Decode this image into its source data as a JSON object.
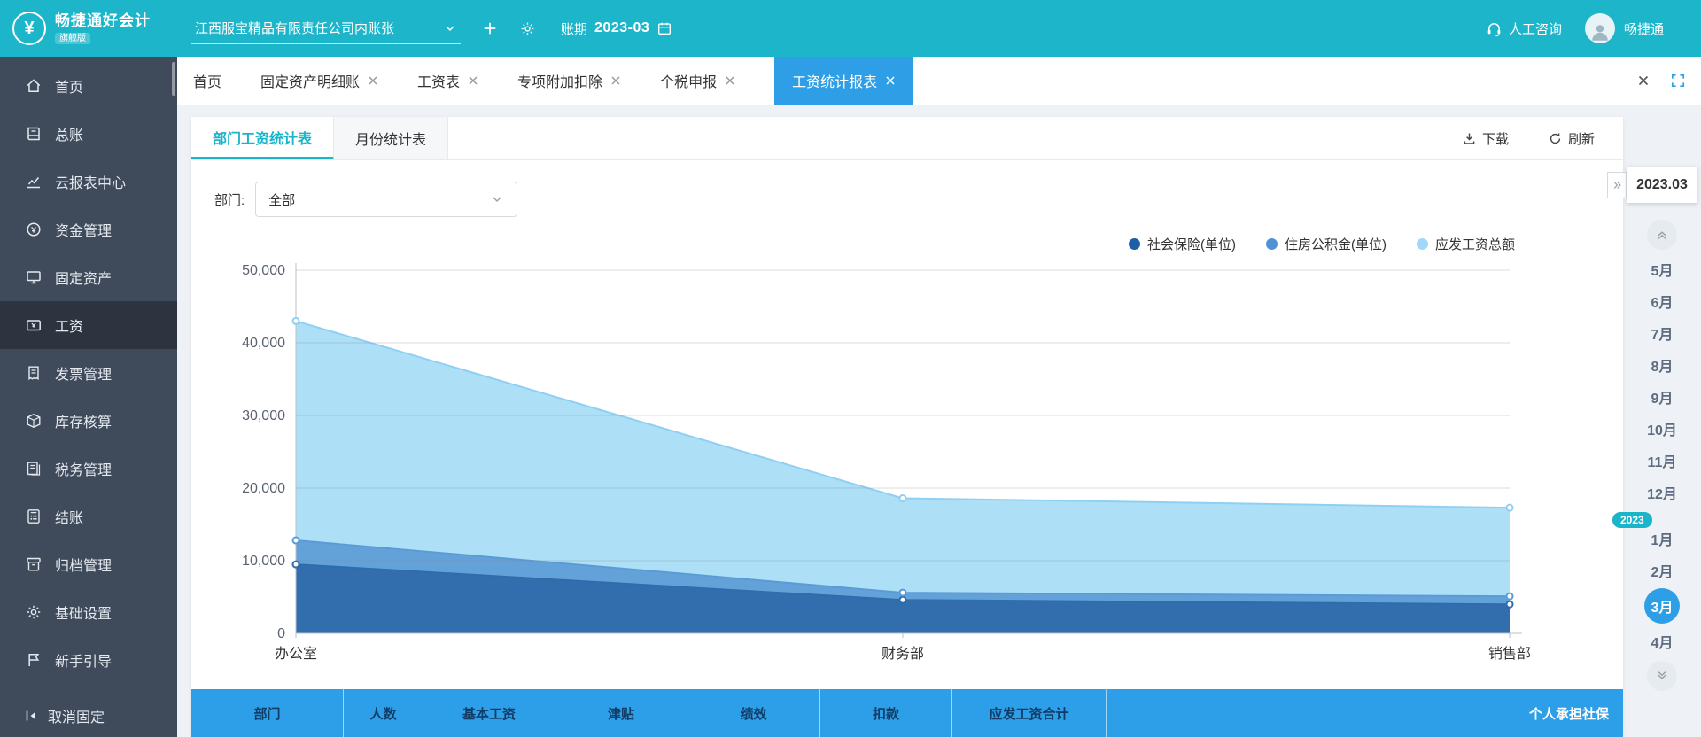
{
  "topbar": {
    "brand": "畅捷通好会计",
    "brand_sub": "旗舰版",
    "company": "江西服宝精品有限责任公司内账张",
    "period_label": "账期",
    "period_value": "2023-03",
    "support": "人工咨询",
    "user": "畅捷通"
  },
  "sidebar": {
    "items": [
      {
        "label": "首页",
        "icon": "home",
        "active": false
      },
      {
        "label": "总账",
        "icon": "ledger",
        "active": false
      },
      {
        "label": "云报表中心",
        "icon": "cloud-report",
        "active": false
      },
      {
        "label": "资金管理",
        "icon": "funds",
        "active": false
      },
      {
        "label": "固定资产",
        "icon": "fixed-assets",
        "active": false
      },
      {
        "label": "工资",
        "icon": "salary",
        "active": true
      },
      {
        "label": "发票管理",
        "icon": "invoice",
        "active": false
      },
      {
        "label": "库存核算",
        "icon": "inventory",
        "active": false
      },
      {
        "label": "税务管理",
        "icon": "tax",
        "active": false
      },
      {
        "label": "结账",
        "icon": "closing",
        "active": false
      },
      {
        "label": "归档管理",
        "icon": "archive",
        "active": false
      },
      {
        "label": "基础设置",
        "icon": "settings",
        "active": false
      },
      {
        "label": "新手引导",
        "icon": "guide",
        "active": false
      }
    ],
    "unpin": "取消固定"
  },
  "tabs": {
    "items": [
      {
        "label": "首页",
        "closable": false,
        "active": false
      },
      {
        "label": "固定资产明细账",
        "closable": true,
        "active": false
      },
      {
        "label": "工资表",
        "closable": true,
        "active": false
      },
      {
        "label": "专项附加扣除",
        "closable": true,
        "active": false
      },
      {
        "label": "个税申报",
        "closable": true,
        "active": false
      },
      {
        "label": "工资统计报表",
        "closable": true,
        "active": true
      }
    ]
  },
  "content": {
    "subtabs": [
      {
        "label": "部门工资统计表",
        "active": true
      },
      {
        "label": "月份统计表",
        "active": false
      }
    ],
    "actions": {
      "download": "下载",
      "refresh": "刷新"
    },
    "filter": {
      "label": "部门:",
      "value": "全部"
    }
  },
  "chart_data": {
    "type": "area",
    "title": "",
    "categories": [
      "办公室",
      "财务部",
      "销售部"
    ],
    "series": [
      {
        "name": "社会保险(单位)",
        "values": [
          9500,
          4600,
          4000
        ],
        "fill": "#2F6CAB",
        "stroke": "#2F6CAB",
        "legend": "#1C5FA6",
        "opacity": 0.95
      },
      {
        "name": "住房公积金(单位)",
        "values": [
          12800,
          5600,
          5100
        ],
        "fill": "#5B9BD5",
        "stroke": "#5B9BD5",
        "legend": "#4F93D5",
        "opacity": 0.9
      },
      {
        "name": "应发工资总额",
        "values": [
          43000,
          18600,
          17300
        ],
        "fill": "#A9DDF7",
        "stroke": "#8FD0F2",
        "legend": "#9FD9F7",
        "opacity": 0.95
      }
    ],
    "ylim": [
      0,
      50000
    ],
    "yticks": [
      0,
      10000,
      20000,
      30000,
      40000,
      50000
    ],
    "legend_position": "top-right",
    "grid": true
  },
  "table": {
    "columns": [
      "部门",
      "人数",
      "基本工资",
      "津贴",
      "绩效",
      "扣款",
      "应发工资合计"
    ],
    "right_label": "个人承担社保"
  },
  "calendar": {
    "current": "2023.03",
    "year_badge": "2023",
    "year_badge_before": "1月",
    "months": [
      "5月",
      "6月",
      "7月",
      "8月",
      "9月",
      "10月",
      "11月",
      "12月",
      "1月",
      "2月",
      "3月",
      "4月"
    ],
    "active_month": "3月"
  },
  "colors": {
    "topbar": "#1DB5CA",
    "sidebar": "#3F4A5B",
    "active_tab": "#2E9FE6",
    "table_header": "#2D9FE8",
    "subtab_teal": "#1BB5CA"
  }
}
